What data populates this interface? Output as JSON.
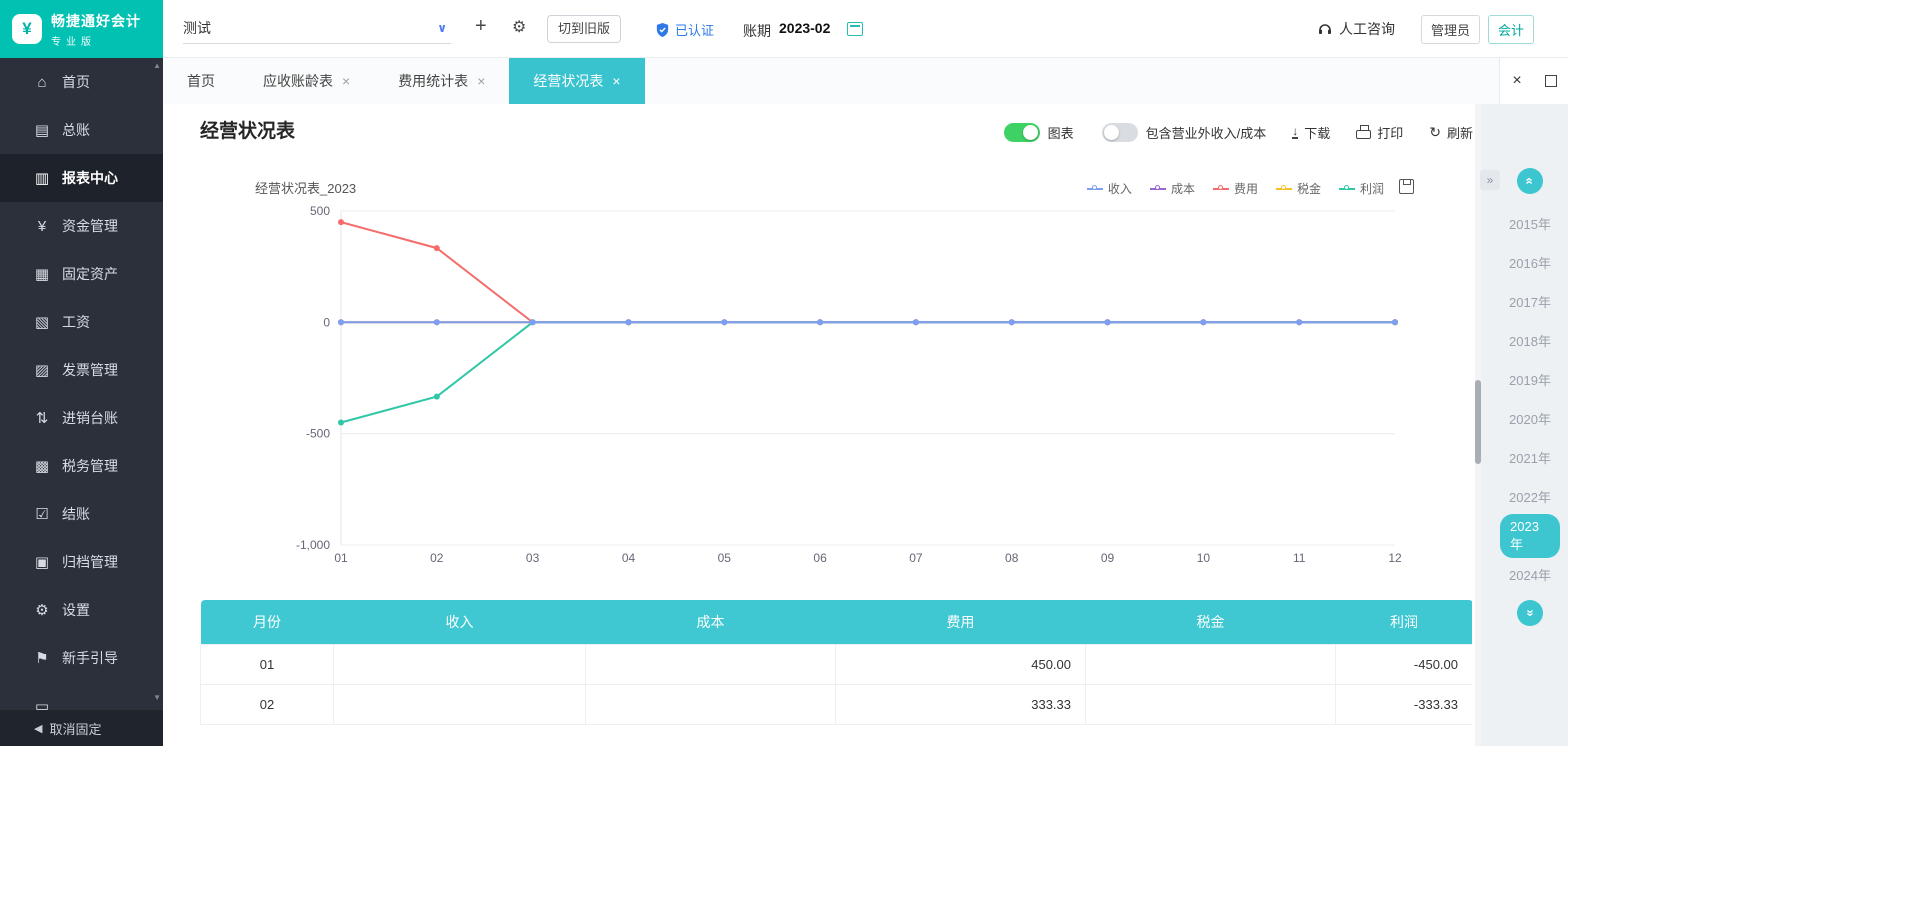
{
  "app": {
    "name": "畅捷通好会计",
    "edition": "专业版",
    "logo_glyph": "¥"
  },
  "icons": {
    "close": "×",
    "plus": "+",
    "gear": "⚙",
    "chevron_down": "∨",
    "refresh": "↻",
    "download_arrow": "↓",
    "double_chevron": "«",
    "expand": "»",
    "unpin_arrow": "◀",
    "scroll_up": "▲",
    "scroll_down": "▼"
  },
  "topbar": {
    "account": "测试",
    "switch_old": "切到旧版",
    "certified": "已认证",
    "period_label": "账期",
    "period_value": "2023-02",
    "support": "人工咨询",
    "admin": "管理员",
    "accountant": "会计"
  },
  "sidebar": {
    "items": [
      {
        "label": "首页",
        "glyph": "⌂"
      },
      {
        "label": "总账",
        "glyph": "▤"
      },
      {
        "label": "报表中心",
        "glyph": "▥"
      },
      {
        "label": "资金管理",
        "glyph": "¥"
      },
      {
        "label": "固定资产",
        "glyph": "▦"
      },
      {
        "label": "工资",
        "glyph": "▧"
      },
      {
        "label": "发票管理",
        "glyph": "▨"
      },
      {
        "label": "进销台账",
        "glyph": "⇅"
      },
      {
        "label": "税务管理",
        "glyph": "▩"
      },
      {
        "label": "结账",
        "glyph": "☑"
      },
      {
        "label": "归档管理",
        "glyph": "▣"
      },
      {
        "label": "设置",
        "glyph": "⚙"
      },
      {
        "label": "新手引导",
        "glyph": "⚑"
      },
      {
        "label": "",
        "glyph": "▭"
      }
    ],
    "unpin": "取消固定"
  },
  "tabs": {
    "items": [
      {
        "label": "首页"
      },
      {
        "label": "应收账龄表"
      },
      {
        "label": "费用统计表"
      },
      {
        "label": "经营状况表"
      }
    ]
  },
  "page": {
    "title": "经营状况表",
    "toggle_chart": "图表",
    "toggle_nonop": "包含营业外收入/成本",
    "download": "下载",
    "print": "打印",
    "refresh": "刷新"
  },
  "chart_data": {
    "type": "line",
    "title": "经营状况表_2023",
    "categories": [
      "01",
      "02",
      "03",
      "04",
      "05",
      "06",
      "07",
      "08",
      "09",
      "10",
      "11",
      "12"
    ],
    "series": [
      {
        "name": "收入",
        "color": "#7e9ef2",
        "values": [
          0,
          0,
          0,
          0,
          0,
          0,
          0,
          0,
          0,
          0,
          0,
          0
        ]
      },
      {
        "name": "成本",
        "color": "#9a67cf",
        "values": [
          0,
          0,
          0,
          0,
          0,
          0,
          0,
          0,
          0,
          0,
          0,
          0
        ]
      },
      {
        "name": "费用",
        "color": "#f56c6c",
        "values": [
          450,
          333.33,
          0,
          0,
          0,
          0,
          0,
          0,
          0,
          0,
          0,
          0
        ]
      },
      {
        "name": "税金",
        "color": "#f6c02d",
        "values": [
          0,
          0,
          0,
          0,
          0,
          0,
          0,
          0,
          0,
          0,
          0,
          0
        ]
      },
      {
        "name": "利润",
        "color": "#2fc7a5",
        "values": [
          -450,
          -333.33,
          0,
          0,
          0,
          0,
          0,
          0,
          0,
          0,
          0,
          0
        ]
      }
    ],
    "y_ticks": [
      500,
      0,
      -500,
      -1000
    ],
    "y_tick_labels": [
      "500",
      "0",
      "-500",
      "-1,000"
    ],
    "ylim": [
      -1000,
      500
    ],
    "grid": true,
    "legend_position": "top-right"
  },
  "table": {
    "headers": [
      "月份",
      "收入",
      "成本",
      "费用",
      "税金",
      "利润"
    ],
    "rows": [
      [
        "01",
        "",
        "",
        "450.00",
        "",
        "-450.00"
      ],
      [
        "02",
        "",
        "",
        "333.33",
        "",
        "-333.33"
      ]
    ]
  },
  "year_rail": {
    "years": [
      "2015年",
      "2016年",
      "2017年",
      "2018年",
      "2019年",
      "2020年",
      "2021年",
      "2022年",
      "2023年",
      "2024年"
    ],
    "selected": "2023年",
    "selected_index": 8
  }
}
